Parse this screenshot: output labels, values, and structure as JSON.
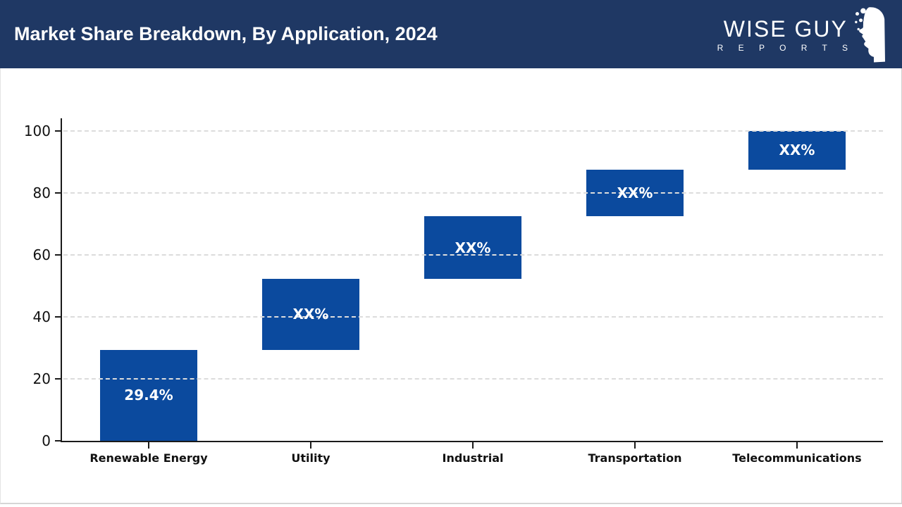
{
  "header": {
    "title": "Market Share Breakdown, By Application, 2024",
    "logo": {
      "line1": "WISE GUY",
      "line2": "R E P O R T S"
    }
  },
  "watermark": {
    "line1": "WISE GUY",
    "line2": "R E P O R T S"
  },
  "colors": {
    "header_bg": "#1f3864",
    "bar": "#0b4a9e",
    "bar_label": "#ffffff",
    "grid": "#dcdcdc",
    "axis": "#1a1a1a",
    "watermark": "#f2f2f4"
  },
  "chart_data": {
    "type": "bar",
    "subtype": "waterfall",
    "title": "Market Share Breakdown, By Application, 2024",
    "categories": [
      "Renewable Energy",
      "Utility",
      "Industrial",
      "Transportation",
      "Telecommunications"
    ],
    "series": [
      {
        "name": "Market Share",
        "segments": [
          {
            "category": "Renewable Energy",
            "start": 0,
            "end": 29.4,
            "value_label": "29.4%"
          },
          {
            "category": "Utility",
            "start": 29.4,
            "end": 52.2,
            "value_label": "XX%"
          },
          {
            "category": "Industrial",
            "start": 52.2,
            "end": 72.4,
            "value_label": "XX%"
          },
          {
            "category": "Transportation",
            "start": 72.4,
            "end": 87.6,
            "value_label": "XX%"
          },
          {
            "category": "Telecommunications",
            "start": 87.6,
            "end": 100,
            "value_label": "XX%"
          }
        ]
      }
    ],
    "xlabel": "",
    "ylabel": "",
    "ylim": [
      0,
      104
    ],
    "yticks": [
      0,
      20,
      40,
      60,
      80,
      100
    ],
    "grid": "horizontal-dashed",
    "gridlines_above_bars": true,
    "legend": "none"
  }
}
